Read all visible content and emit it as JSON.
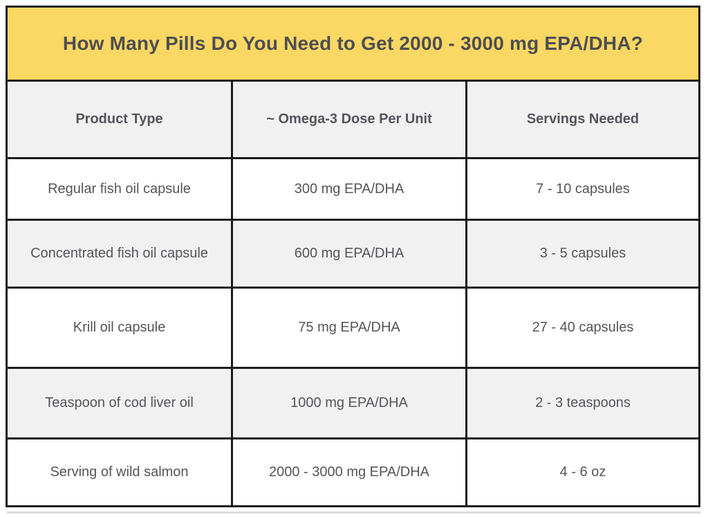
{
  "title": "How Many Pills Do You Need to Get 2000 - 3000 mg EPA/DHA?",
  "colors": {
    "banner_bg": "#FBD763",
    "border": "#1B1B1B",
    "row_alt": "#F1F1F2",
    "text": "#54555A",
    "title_text": "#4D4E52",
    "shadow_line": "#DBDBDB"
  },
  "chart_data": {
    "type": "table",
    "title": "How Many Pills Do You Need to Get 2000 - 3000 mg EPA/DHA?",
    "columns": [
      "Product Type",
      "~ Omega-3 Dose Per Unit",
      "Servings Needed"
    ],
    "rows": [
      [
        "Regular fish oil capsule",
        "300 mg EPA/DHA",
        "7 - 10 capsules"
      ],
      [
        "Concentrated fish oil capsule",
        "600 mg EPA/DHA",
        "3 - 5 capsules"
      ],
      [
        "Krill oil capsule",
        "75 mg EPA/DHA",
        "27 - 40 capsules"
      ],
      [
        "Teaspoon of cod liver oil",
        "1000 mg EPA/DHA",
        "2 - 3 teaspoons"
      ],
      [
        "Serving of wild salmon",
        "2000 - 3000 mg EPA/DHA",
        "4 - 6 oz"
      ]
    ],
    "layout": {
      "header_background": "#F1F1F2",
      "alternating_rows": true,
      "grid": true,
      "title_banner_background": "#FBD763"
    }
  }
}
